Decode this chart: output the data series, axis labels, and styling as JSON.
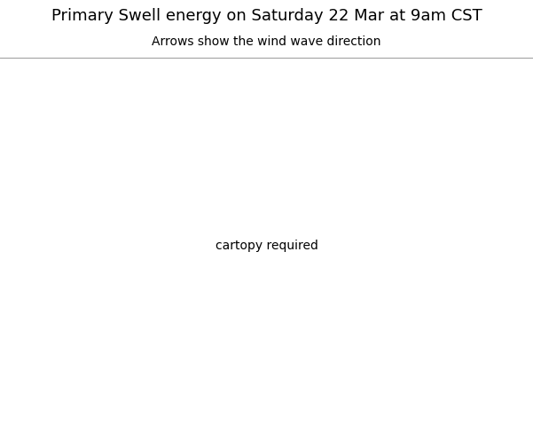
{
  "title": "Primary Swell energy on Saturday 22 Mar at 9am CST",
  "subtitle": "Arrows show the wind wave direction",
  "title_fontsize": 13,
  "subtitle_fontsize": 10,
  "bg_color": "#ffffff",
  "map_lon_min": -175,
  "map_lon_max": -55,
  "map_lat_min": 20,
  "map_lat_max": 85,
  "land_color": "#aaaaaa",
  "water_color": "#000000",
  "ocean_bg": "#c8d8e8",
  "border_color": "#000000",
  "border_lw": 0.6,
  "state_border_color": "#000000",
  "state_border_lw": 0.4,
  "arrow_color": "#40d0c0",
  "arrow_lw": 1.2,
  "swell_colors": [
    "#ffff99",
    "#fffaaa",
    "#f5f0a0",
    "#e0e890",
    "#c8e070",
    "#a0d060",
    "#70c850",
    "#40b040",
    "#209820",
    "#0070a0",
    "#0040c0",
    "#0010e0",
    "#000090"
  ],
  "ocean_gradient_far": "#ffffaa",
  "ocean_gradient_near": "#0000cc",
  "coast_dark": "#000000"
}
